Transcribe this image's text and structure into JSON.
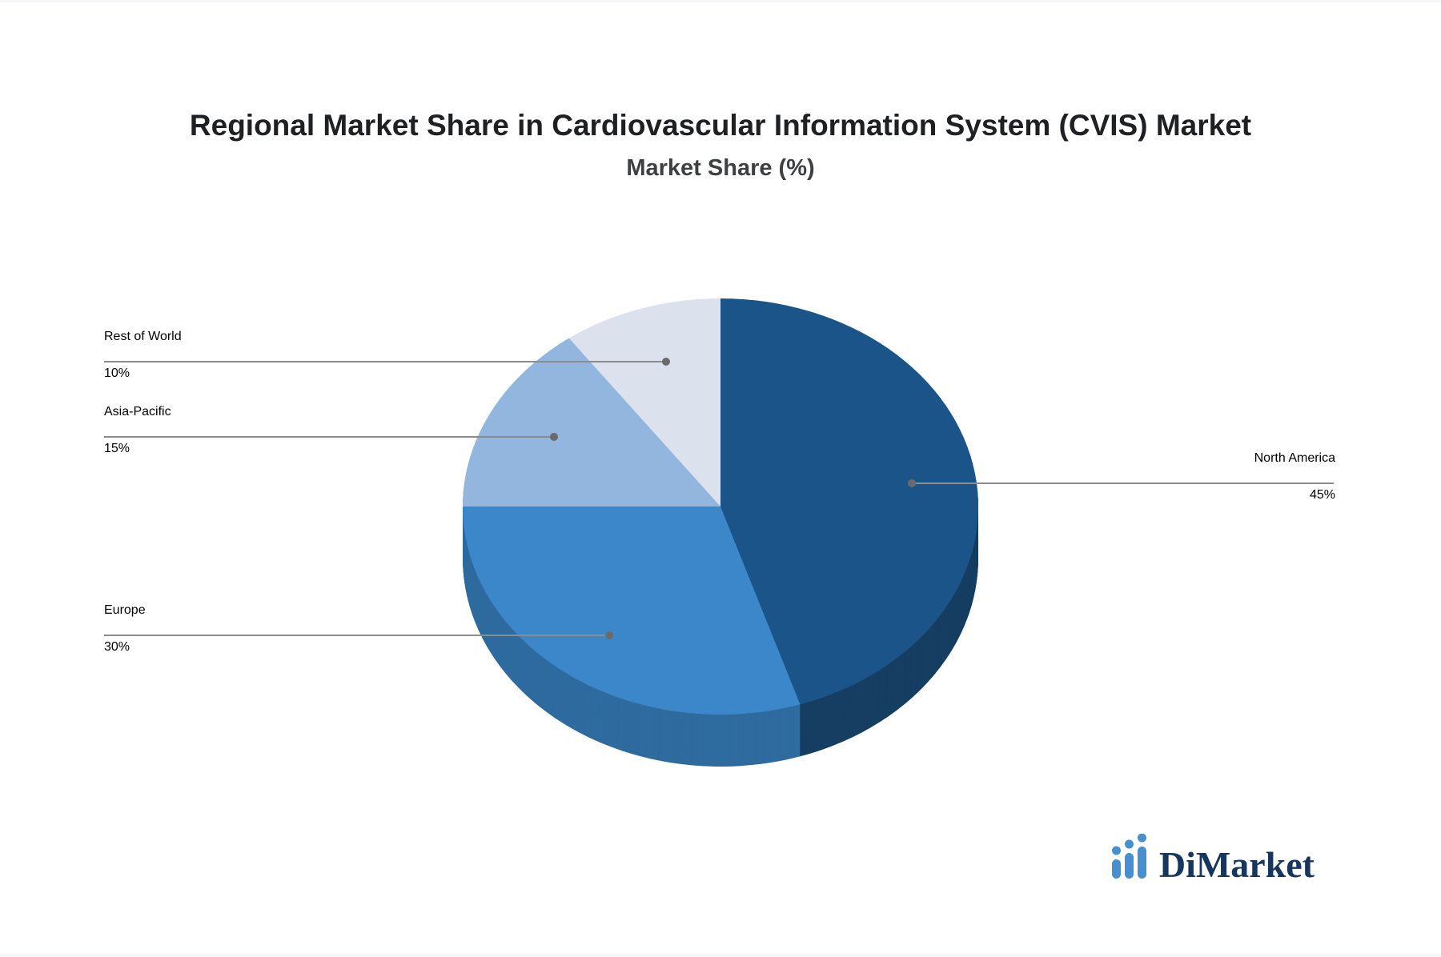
{
  "page": {
    "title": "Regional Market Share in Cardiovascular Information System (CVIS) Market",
    "subtitle": "Market Share (%)"
  },
  "chart_data": {
    "type": "pie",
    "title": "Regional Market Share in Cardiovascular Information System (CVIS) Market",
    "subtitle": "Market Share (%)",
    "unit": "%",
    "direction": "clockwise",
    "start_angle_deg": 0,
    "style": "3d-depth",
    "labels_position": "callout-lines",
    "slices": [
      {
        "label": "North America",
        "value": 45,
        "display": "45%",
        "color": "#1b5489",
        "depth_color": "#163e62"
      },
      {
        "label": "Europe",
        "value": 30,
        "display": "30%",
        "color": "#3c87c9",
        "depth_color": "#2e6b9f"
      },
      {
        "label": "Asia-Pacific",
        "value": 15,
        "display": "15%",
        "color": "#93b6de",
        "depth_color": "#7191b8"
      },
      {
        "label": "Rest of World",
        "value": 10,
        "display": "10%",
        "color": "#dbe2ee",
        "depth_color": "#b6c1d4"
      }
    ]
  },
  "callout_colors": {
    "line": "#8c8c8c",
    "dot": "#6a6a6a",
    "name_text": "#2a2c2f",
    "value_text": "#9aa0a6"
  },
  "brand": {
    "name": "DiMarket",
    "icon": "bar-chart-icon",
    "icon_color": "#4690d2",
    "text_color": "#17365d"
  }
}
